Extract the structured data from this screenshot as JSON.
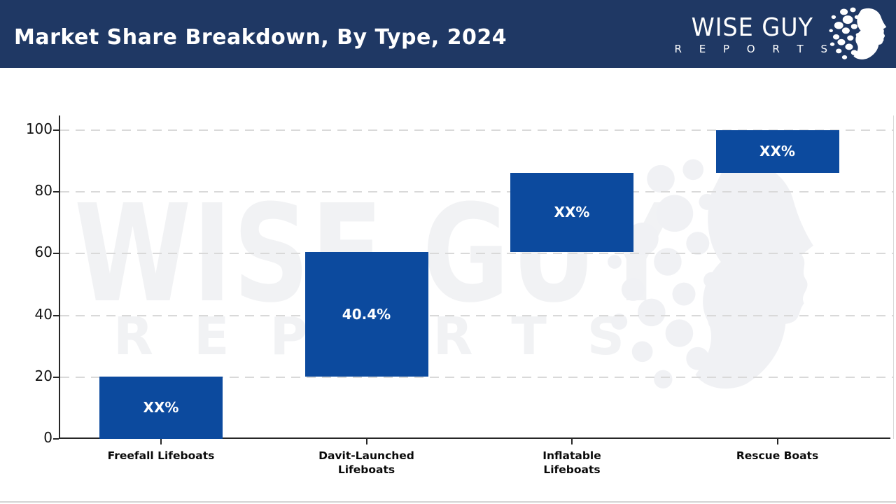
{
  "header": {
    "title": "Market Share Breakdown, By Type, 2024",
    "bg_color": "#1f3864",
    "logo": {
      "line1": "WISE GUY",
      "line2": "R E P O R T S"
    }
  },
  "watermark": {
    "line1": "WISE GUY",
    "line2": "REPORTS"
  },
  "chart_data": {
    "type": "bar",
    "subtype": "floating-segment-columns",
    "title": "Market Share Breakdown, By Type, 2024",
    "categories": [
      "Freefall Lifeboats",
      "Davit-Launched Lifeboats",
      "Inflatable Lifeboats",
      "Rescue Boats"
    ],
    "categories_wrapped": [
      [
        "Freefall Lifeboats"
      ],
      [
        "Davit-Launched",
        "Lifeboats"
      ],
      [
        "Inflatable",
        "Lifeboats"
      ],
      [
        "Rescue Boats"
      ]
    ],
    "segments": [
      {
        "category": "Freefall Lifeboats",
        "start": 0,
        "end": 20.2,
        "label": "XX%"
      },
      {
        "category": "Davit-Launched Lifeboats",
        "start": 20.2,
        "end": 60.6,
        "label": "40.4%"
      },
      {
        "category": "Inflatable Lifeboats",
        "start": 60.6,
        "end": 86.2,
        "label": "XX%"
      },
      {
        "category": "Rescue Boats",
        "start": 86.2,
        "end": 100,
        "label": "XX%"
      }
    ],
    "ylim": [
      0,
      100
    ],
    "yticks": [
      0,
      20,
      40,
      60,
      80,
      100
    ],
    "xlabel": "",
    "ylabel": "",
    "grid": "horizontal-dashed",
    "legend": "none",
    "bar_color": "#0c4a9e",
    "bar_label_color": "#ffffff"
  }
}
